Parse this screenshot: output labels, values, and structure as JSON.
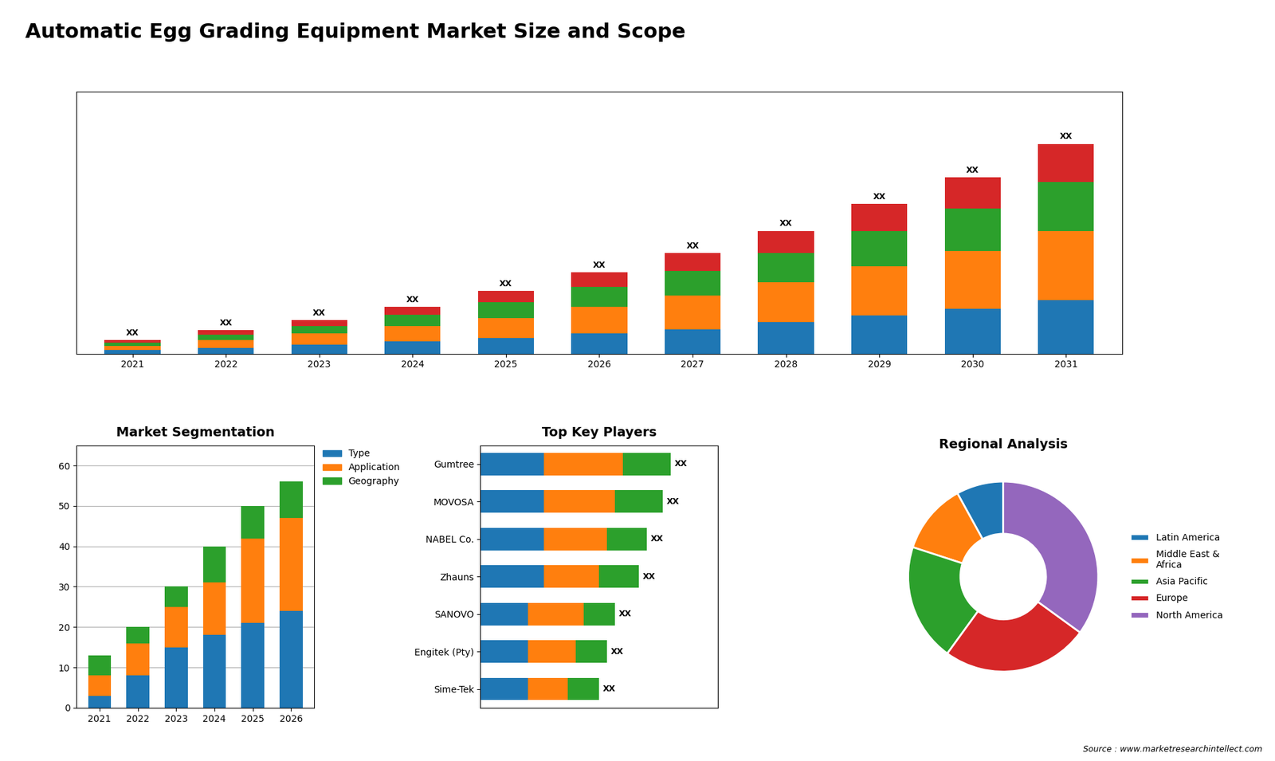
{
  "title": "Automatic Egg Grading Equipment Market Size and Scope",
  "annotations": [
    "Source : www.marketresearchintellect.com"
  ],
  "chart_data": [
    {
      "type": "bar",
      "stacked": true,
      "categories": [
        "2021",
        "2022",
        "2023",
        "2024",
        "2025",
        "2026",
        "2027",
        "2028",
        "2029",
        "2030",
        "2031"
      ],
      "series": [
        {
          "values": [
            1.5,
            2.5,
            4,
            5.5,
            7,
            9,
            11,
            14,
            17,
            20,
            24
          ]
        },
        {
          "values": [
            2,
            3.5,
            5,
            7,
            9,
            12,
            15,
            18,
            22,
            26,
            31
          ]
        },
        {
          "values": [
            1.5,
            2.5,
            3.5,
            5,
            7,
            9,
            11,
            13,
            16,
            19,
            22
          ]
        },
        {
          "values": [
            1,
            2,
            2.5,
            3.5,
            5,
            6.5,
            8,
            10,
            12,
            14,
            17
          ]
        }
      ],
      "value_labels": [
        "XX",
        "XX",
        "XX",
        "XX",
        "XX",
        "XX",
        "XX",
        "XX",
        "XX",
        "XX",
        "XX"
      ],
      "ylim": [
        0,
        117.5
      ],
      "yticks": [],
      "tick_labels": "x",
      "grid": false
    },
    {
      "type": "bar",
      "title": "Market Segmentation",
      "stacked": true,
      "categories": [
        "2021",
        "2022",
        "2023",
        "2024",
        "2025",
        "2026"
      ],
      "series": [
        {
          "name": "Type",
          "values": [
            3,
            8,
            15,
            18,
            21,
            24
          ]
        },
        {
          "name": "Application",
          "values": [
            5,
            8,
            10,
            13,
            21,
            23
          ]
        },
        {
          "name": "Geography",
          "values": [
            5,
            4,
            5,
            9,
            8,
            9
          ]
        }
      ],
      "ylim": [
        0,
        65
      ],
      "yticks": [
        0,
        10,
        20,
        30,
        40,
        50,
        60
      ],
      "grid": true,
      "legend": "upper left"
    },
    {
      "type": "bar",
      "orientation": "horizontal",
      "title": "Top Key Players",
      "stacked": true,
      "categories": [
        "Gumtree",
        "MOVOSA",
        "NABEL Co.",
        "Zhauns",
        "SANOVO",
        "Engitek (Pty)",
        "Sime-Tek"
      ],
      "series": [
        {
          "values": [
            4,
            4,
            4,
            4,
            3,
            3,
            3
          ]
        },
        {
          "values": [
            5,
            4.5,
            4,
            3.5,
            3.5,
            3,
            2.5
          ]
        },
        {
          "values": [
            3,
            3,
            2.5,
            2.5,
            2,
            2,
            2
          ]
        }
      ],
      "value_labels": [
        "XX",
        "XX",
        "XX",
        "XX",
        "XX",
        "XX",
        "XX"
      ],
      "xlim": [
        0,
        15
      ],
      "xticks": [],
      "tick_labels": "y",
      "grid": false
    },
    {
      "type": "pie",
      "title": "Regional Analysis",
      "categories": [
        "Latin America",
        "Middle East &\nAfrica",
        "Asia Pacific",
        "Europe",
        "North America"
      ],
      "values": [
        8,
        12,
        20,
        25,
        35
      ],
      "legend": "center left"
    }
  ]
}
